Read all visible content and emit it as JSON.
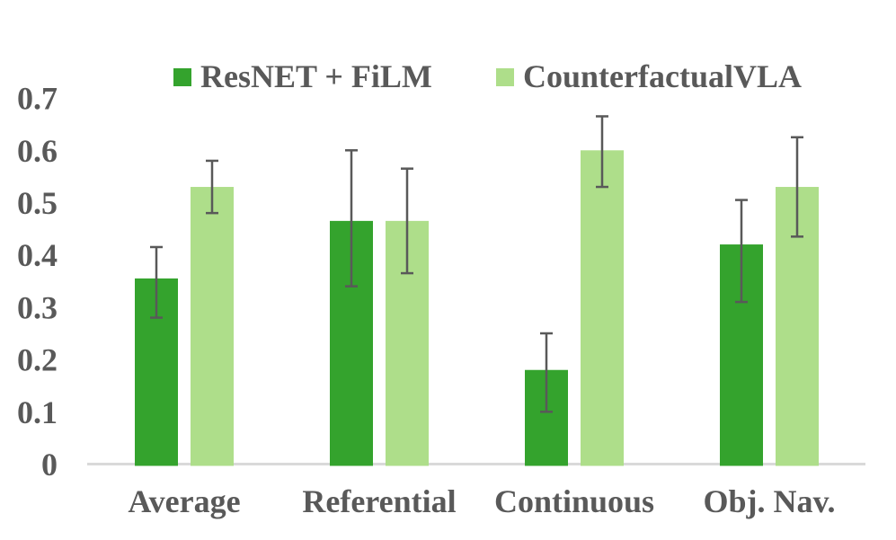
{
  "chart_data": {
    "type": "bar",
    "title": "",
    "xlabel": "",
    "ylabel": "",
    "categories": [
      "Average",
      "Referential",
      "Continuous",
      "Obj. Nav."
    ],
    "series": [
      {
        "name": "ResNET + FiLM",
        "color": "#34A32D",
        "values": [
          0.355,
          0.465,
          0.18,
          0.42
        ],
        "err_low": [
          0.28,
          0.34,
          0.1,
          0.31
        ],
        "err_high": [
          0.415,
          0.6,
          0.25,
          0.505
        ]
      },
      {
        "name": "CounterfactualVLA",
        "color": "#AEDE8A",
        "values": [
          0.53,
          0.465,
          0.6,
          0.53
        ],
        "err_low": [
          0.48,
          0.365,
          0.53,
          0.435
        ],
        "err_high": [
          0.58,
          0.565,
          0.665,
          0.625
        ]
      }
    ],
    "ylim": [
      0,
      0.7
    ],
    "yticks": [
      {
        "value": 0,
        "label": "0"
      },
      {
        "value": 0.1,
        "label": "0.1"
      },
      {
        "value": 0.2,
        "label": "0.2"
      },
      {
        "value": 0.3,
        "label": "0.3"
      },
      {
        "value": 0.4,
        "label": "0.4"
      },
      {
        "value": 0.5,
        "label": "0.5"
      },
      {
        "value": 0.6,
        "label": "0.6"
      },
      {
        "value": 0.7,
        "label": "0.7"
      }
    ],
    "grid": false,
    "error_bars": true,
    "legend_position": "top",
    "colors": {
      "text": "#595959",
      "error_bar": "#595959",
      "axis_line": "#D9D9D9",
      "background": "#FFFFFF"
    }
  }
}
